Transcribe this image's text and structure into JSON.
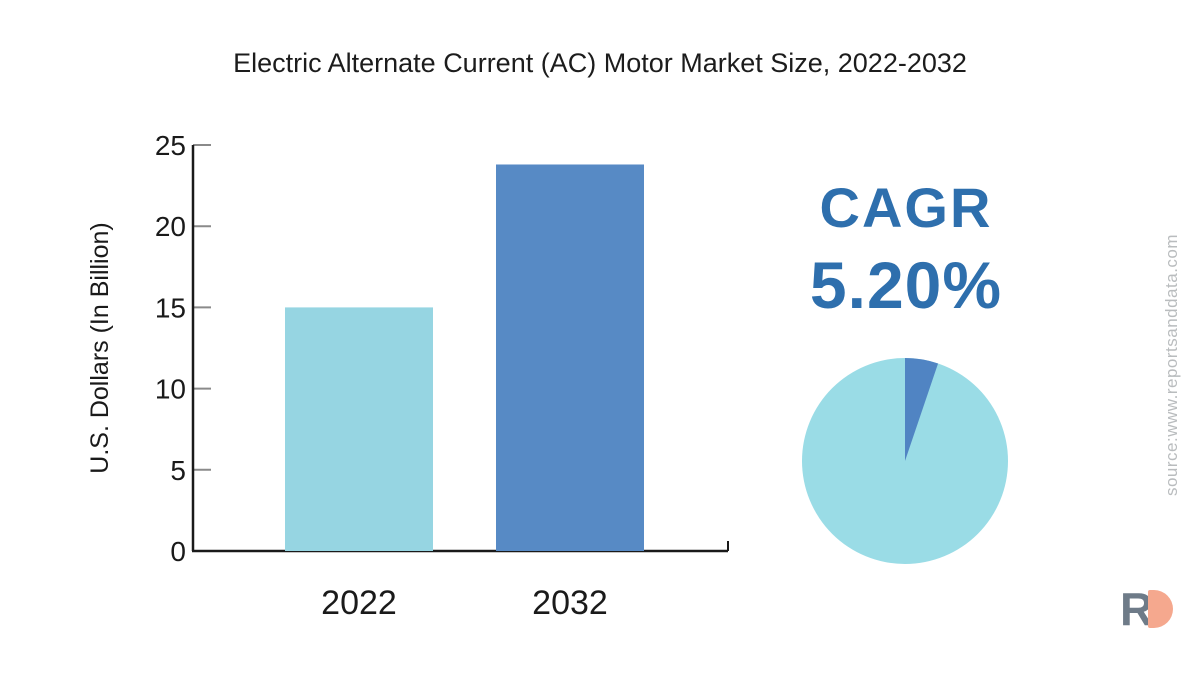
{
  "title": "Electric Alternate Current (AC) Motor Market Size, 2022-2032",
  "chart_data": [
    {
      "type": "bar",
      "title": "Electric Alternate Current (AC) Motor Market Size, 2022-2032",
      "categories": [
        "2022",
        "2032"
      ],
      "values": [
        15,
        23.8
      ],
      "xlabel": "",
      "ylabel": "U.S. Dollars (In Billion)",
      "ylim": [
        0,
        25
      ],
      "yticks": [
        0,
        5,
        10,
        15,
        20,
        25
      ],
      "grid": false,
      "legend": false,
      "bar_colors": [
        "#96d5e2",
        "#578ac5"
      ]
    },
    {
      "type": "pie",
      "labels": [
        "CAGR slice",
        "remainder"
      ],
      "values": [
        5.2,
        94.8
      ],
      "colors": [
        "#5084c3",
        "#9adce6"
      ],
      "legend": false
    }
  ],
  "cagr": {
    "label": "CAGR",
    "value": "5.20%",
    "color": "#2e6fad"
  },
  "source": {
    "text": "source:www.reportsanddata.com"
  },
  "logo": {
    "letter": "R"
  },
  "colors": {
    "axis": "#1a1a1a",
    "tick": "#8a8a8a",
    "text": "#1a1a1a"
  }
}
